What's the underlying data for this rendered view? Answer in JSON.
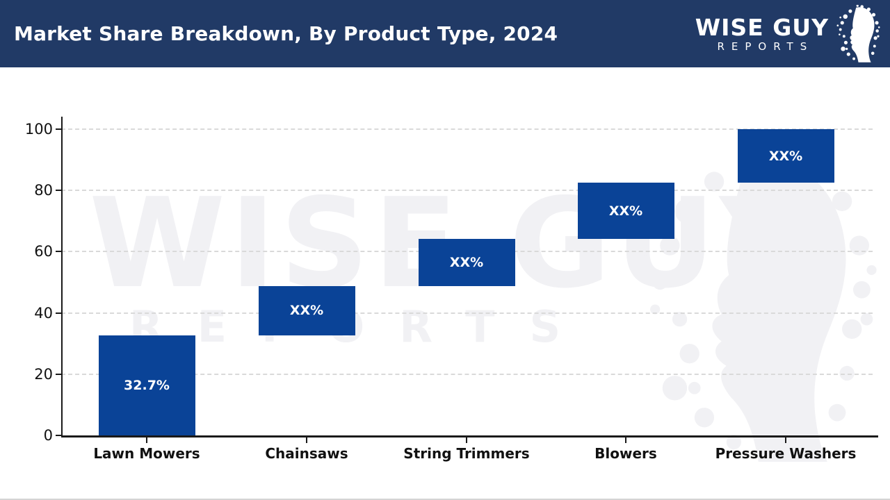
{
  "header": {
    "title": "Market Share Breakdown, By Product Type, 2024",
    "logo": {
      "line1": "WISE GUY",
      "line2": "REPORTS"
    }
  },
  "watermark": {
    "line1": "WISE GUY",
    "line2": "REPORTS"
  },
  "colors": {
    "header_bg": "#213a66",
    "bar": "#0a4397",
    "bar_label": "#ffffff",
    "axis": "#1a1a1a",
    "grid": "#d9d9d9",
    "watermark": "#f1f1f4"
  },
  "chart_data": {
    "type": "bar",
    "subtype": "waterfall",
    "title": "Market Share Breakdown, By Product Type, 2024",
    "xlabel": "",
    "ylabel": "",
    "categories": [
      "Lawn Mowers",
      "Chainsaws",
      "String Trimmers",
      "Blowers",
      "Pressure Washers"
    ],
    "segments": [
      {
        "category": "Lawn Mowers",
        "start": 0,
        "end": 32.7,
        "label": "32.7%"
      },
      {
        "category": "Chainsaws",
        "start": 32.7,
        "end": 48.8,
        "label": "XX%"
      },
      {
        "category": "String Trimmers",
        "start": 48.8,
        "end": 64.1,
        "label": "XX%"
      },
      {
        "category": "Blowers",
        "start": 64.1,
        "end": 82.5,
        "label": "XX%"
      },
      {
        "category": "Pressure Washers",
        "start": 82.5,
        "end": 100,
        "label": "XX%"
      }
    ],
    "yticks": [
      0,
      20,
      40,
      60,
      80,
      100
    ],
    "ylim": [
      0,
      105
    ],
    "grid": "horizontal-dashed",
    "legend": "none",
    "bar_color": "#0a4397",
    "label_color": "#ffffff"
  }
}
